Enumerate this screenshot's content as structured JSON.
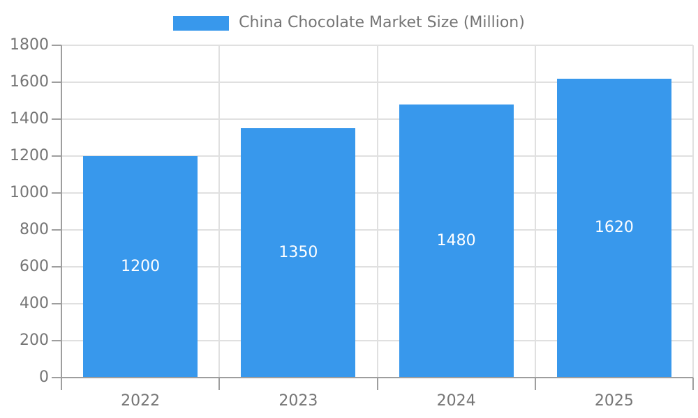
{
  "legend": {
    "label": "China Chocolate Market Size (Million)"
  },
  "chart_data": {
    "type": "bar",
    "title": "China Chocolate Market Size (Million)",
    "categories": [
      "2022",
      "2023",
      "2024",
      "2025"
    ],
    "values": [
      1200,
      1350,
      1480,
      1620
    ],
    "yticks": [
      0,
      200,
      400,
      600,
      800,
      1000,
      1200,
      1400,
      1600,
      1800
    ],
    "ylim": [
      0,
      1800
    ],
    "xlabel": "",
    "ylabel": "",
    "grid": true,
    "legend_position": "top-center",
    "value_labels": "inside-center",
    "colors": {
      "bar": "#3898ec",
      "value_label": "#ffffff",
      "axis_line": "#9e9e9e",
      "gridline": "#e0e0e0",
      "tick_text": "#757575",
      "legend_text": "#757575",
      "background": "#ffffff"
    }
  }
}
